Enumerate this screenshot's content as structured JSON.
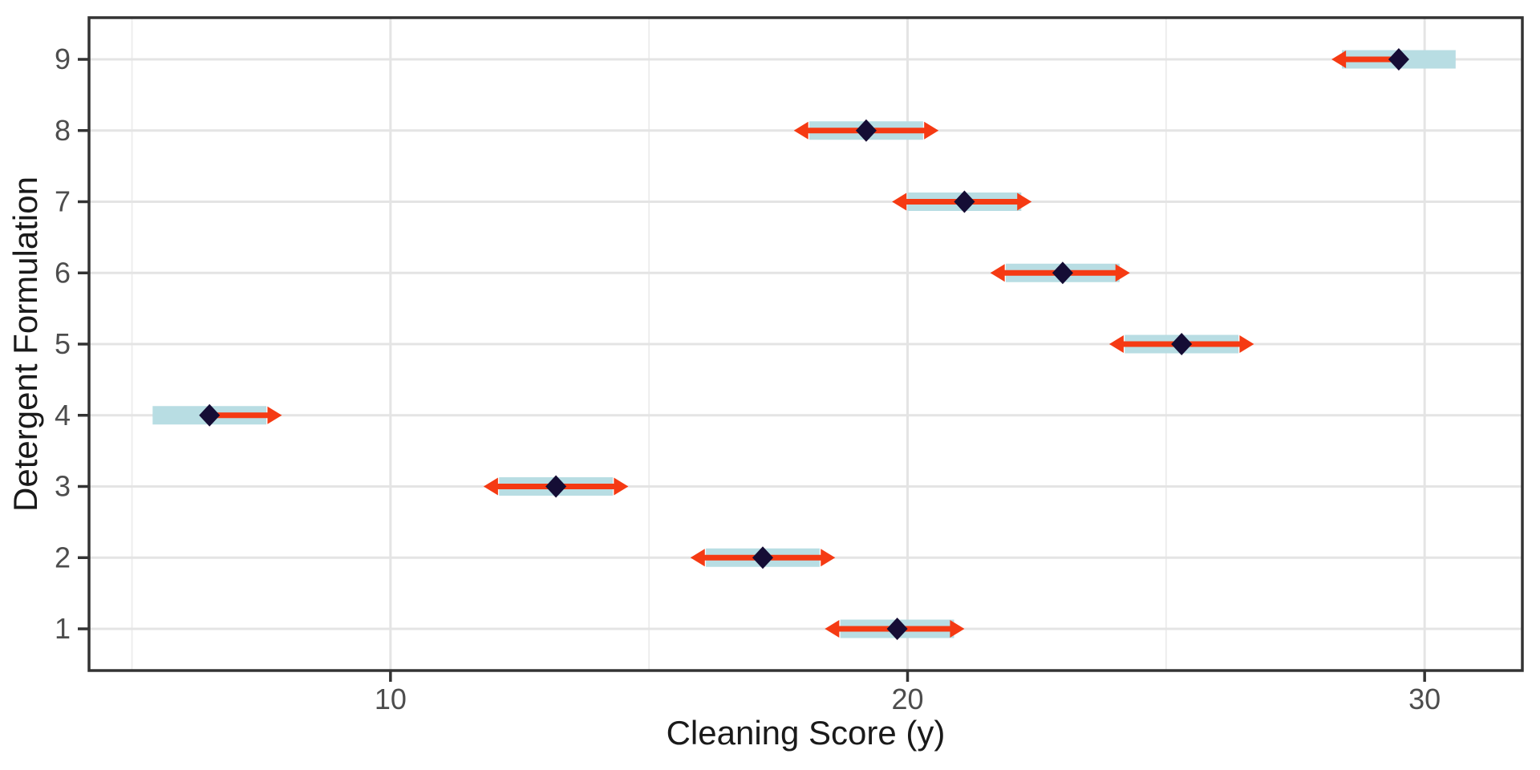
{
  "chart_data": {
    "type": "scatter",
    "subtype": "dot-with-intervals",
    "title": "",
    "xlabel": "Cleaning Score (y)",
    "ylabel": "Detergent Formulation",
    "xlim": [
      4.17,
      31.89
    ],
    "x_major_ticks": [
      10,
      20,
      30
    ],
    "x_minor_ticks": [
      5,
      15,
      25
    ],
    "x_tick_labels": [
      "10",
      "20",
      "30"
    ],
    "y_categories": [
      "1",
      "2",
      "3",
      "4",
      "5",
      "6",
      "7",
      "8",
      "9"
    ],
    "grid": "on",
    "legend": "none",
    "series": [
      {
        "formulation": 1,
        "point": 19.8,
        "band_lo": 18.7,
        "band_hi": 20.9,
        "arrow_lo": 18.4,
        "arrow_hi": 21.1,
        "arrow_heads": "both"
      },
      {
        "formulation": 2,
        "point": 17.2,
        "band_lo": 16.1,
        "band_hi": 18.3,
        "arrow_lo": 15.8,
        "arrow_hi": 18.6,
        "arrow_heads": "both"
      },
      {
        "formulation": 3,
        "point": 13.2,
        "band_lo": 12.1,
        "band_hi": 14.3,
        "arrow_lo": 11.8,
        "arrow_hi": 14.6,
        "arrow_heads": "both"
      },
      {
        "formulation": 4,
        "point": 6.5,
        "band_lo": 5.4,
        "band_hi": 7.6,
        "arrow_lo": 6.5,
        "arrow_hi": 7.9,
        "arrow_heads": "right"
      },
      {
        "formulation": 5,
        "point": 25.3,
        "band_lo": 24.2,
        "band_hi": 26.4,
        "arrow_lo": 23.9,
        "arrow_hi": 26.7,
        "arrow_heads": "both"
      },
      {
        "formulation": 6,
        "point": 23.0,
        "band_lo": 21.9,
        "band_hi": 24.1,
        "arrow_lo": 21.6,
        "arrow_hi": 24.3,
        "arrow_heads": "both"
      },
      {
        "formulation": 7,
        "point": 21.1,
        "band_lo": 20.0,
        "band_hi": 22.2,
        "arrow_lo": 19.7,
        "arrow_hi": 22.4,
        "arrow_heads": "both"
      },
      {
        "formulation": 8,
        "point": 19.2,
        "band_lo": 18.1,
        "band_hi": 20.3,
        "arrow_lo": 17.8,
        "arrow_hi": 20.6,
        "arrow_heads": "both"
      },
      {
        "formulation": 9,
        "point": 29.5,
        "band_lo": 28.4,
        "band_hi": 30.6,
        "arrow_lo": 28.2,
        "arrow_hi": 29.5,
        "arrow_heads": "left"
      }
    ]
  },
  "colors": {
    "band": "#b8dde3",
    "arrow": "#f53a13",
    "point": "#150d35",
    "grid_major": "#e4e4e4",
    "grid_minor": "#ececec",
    "axis_line": "#333333",
    "tick_mark": "#333333",
    "tick_label": "#4d4d4d",
    "axis_title": "#1a1a1a",
    "panel_bg": "#ffffff"
  }
}
